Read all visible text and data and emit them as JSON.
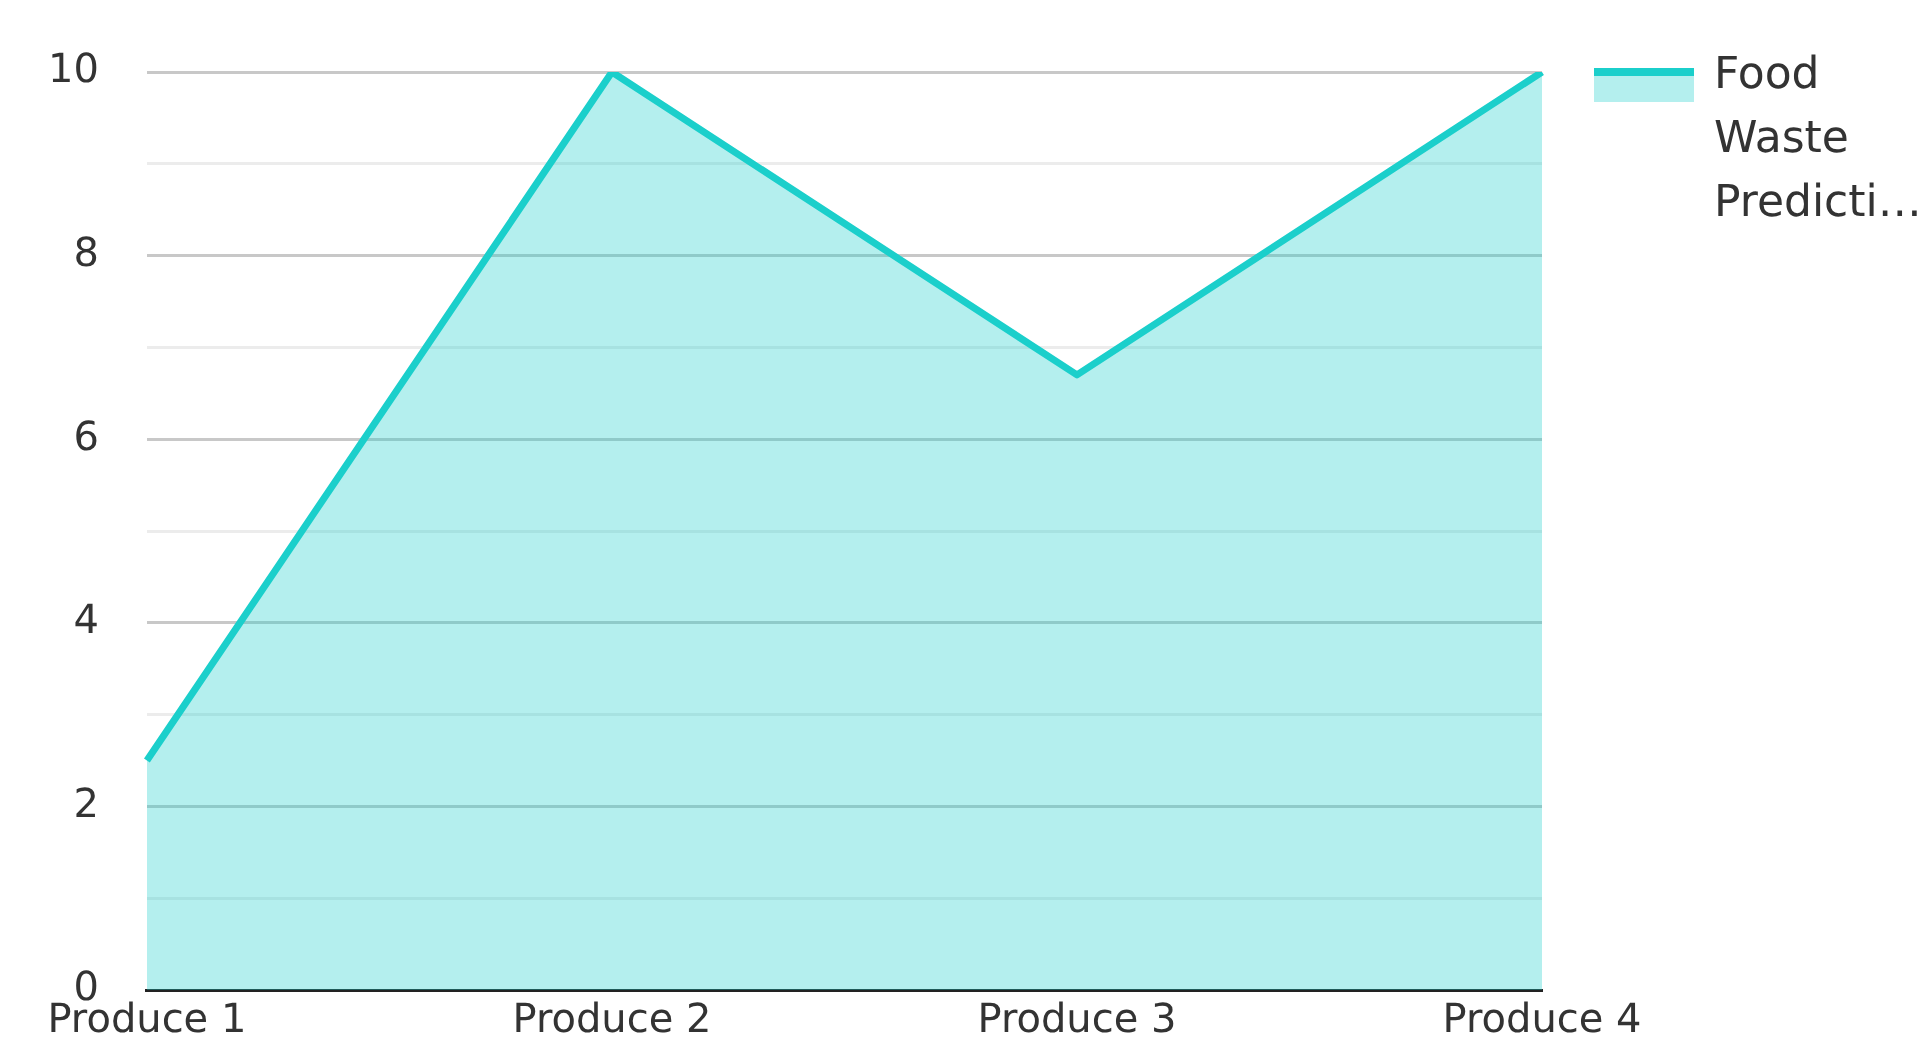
{
  "chart_data": {
    "type": "area",
    "categories": [
      "Produce 1",
      "Produce 2",
      "Produce 3",
      "Produce 4"
    ],
    "series": [
      {
        "name": "Food Waste Predicti…",
        "color": "#1bcfcb",
        "values": [
          2.5,
          10,
          6.7,
          10
        ]
      }
    ],
    "ylim": [
      0,
      10
    ],
    "yticks": [
      0,
      {
        "value": 1,
        "label": null
      },
      2,
      {
        "value": 3,
        "label": null
      },
      4,
      {
        "value": 5,
        "label": null
      },
      6,
      {
        "value": 7,
        "label": null
      },
      8,
      {
        "value": 9,
        "label": null
      },
      10
    ],
    "grid": "y",
    "legend": "top right"
  }
}
